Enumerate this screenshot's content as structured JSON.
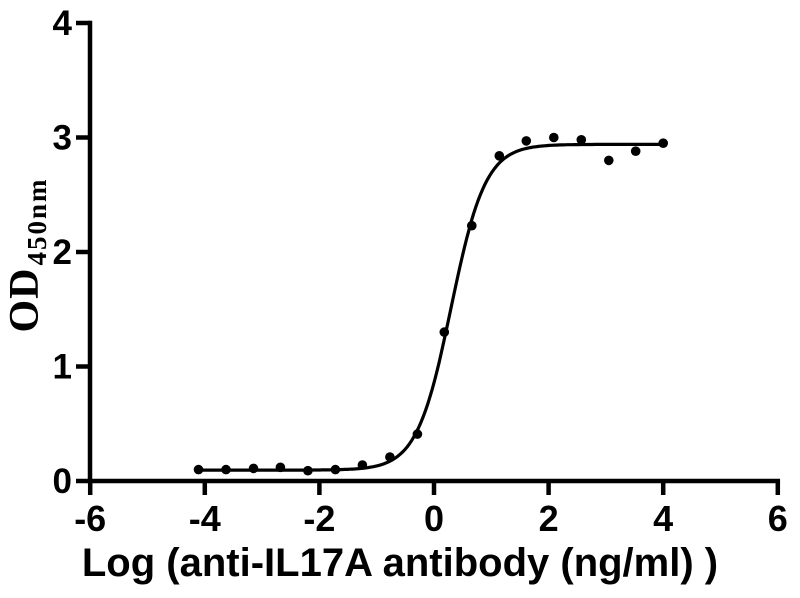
{
  "figure": {
    "background_color": "#ffffff",
    "axis_color": "#000000",
    "point_color": "#000000",
    "curve_color": "#000000"
  },
  "y_axis": {
    "label_main": "OD",
    "label_subscript": "450nm",
    "ticks": [
      4,
      3,
      2,
      1,
      0
    ],
    "range": [
      0,
      4
    ]
  },
  "x_axis": {
    "label": "Log (anti-IL17A antibody (ng/ml) )",
    "ticks": [
      -6,
      -4,
      -2,
      0,
      2,
      4,
      6
    ],
    "range": [
      -6,
      6
    ]
  },
  "chart_data": {
    "type": "scatter",
    "title": "",
    "xlabel": "Log (anti-IL17A antibody (ng/ml) )",
    "ylabel": "OD450nm",
    "xlim": [
      -6,
      6
    ],
    "ylim": [
      0,
      4
    ],
    "grid": false,
    "legend": "none",
    "series": [
      {
        "name": "anti-IL17A antibody",
        "marker": "filled-circle",
        "x": [
          -4.11,
          -3.63,
          -3.15,
          -2.68,
          -2.2,
          -1.72,
          -1.25,
          -0.77,
          -0.29,
          0.18,
          0.66,
          1.14,
          1.61,
          2.09,
          2.57,
          3.05,
          3.52,
          4.0
        ],
        "y": [
          0.1,
          0.1,
          0.11,
          0.12,
          0.09,
          0.1,
          0.14,
          0.21,
          0.41,
          1.3,
          2.23,
          2.84,
          2.97,
          3.0,
          2.98,
          2.8,
          2.88,
          2.95
        ]
      }
    ],
    "fit_curve": {
      "model": "four-parameter-logistic",
      "bottom": 0.095,
      "top": 2.94,
      "log_ec50": 0.3,
      "hill_slope": 1.45,
      "x_start": -4.11,
      "x_end": 4.0
    }
  }
}
